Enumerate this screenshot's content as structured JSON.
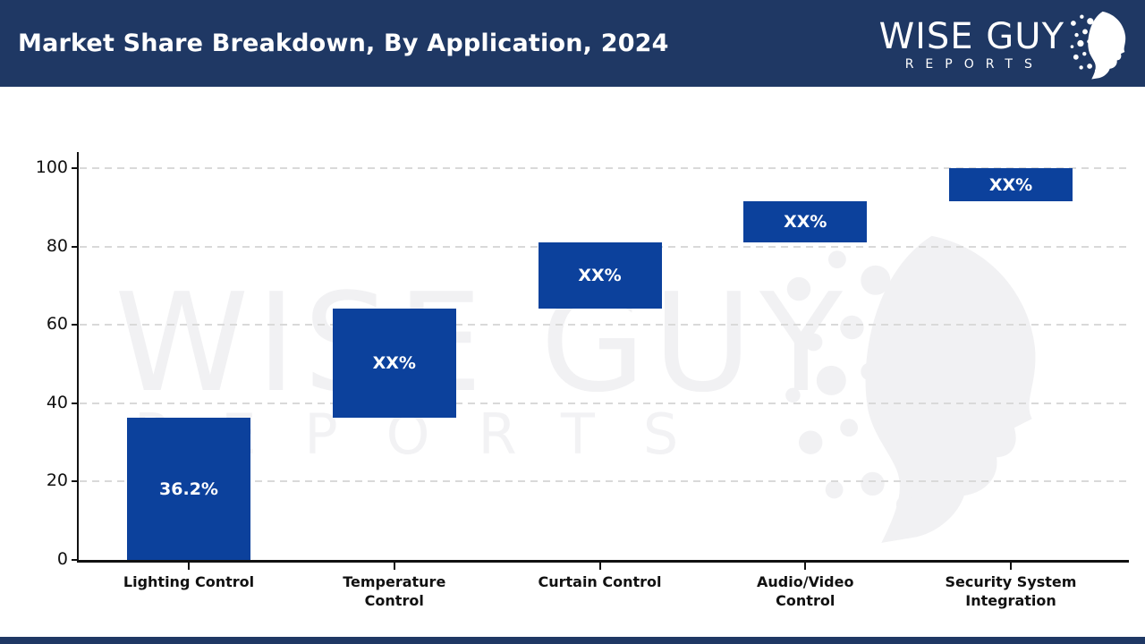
{
  "header": {
    "title": "Market Share Breakdown, By Application, 2024",
    "logo": {
      "line1": "WISE GUY",
      "line2": "REPORTS"
    }
  },
  "watermark": {
    "line1": "WISE GUY",
    "line2": "REPORTS"
  },
  "chart_data": {
    "type": "bar",
    "subtype": "waterfall",
    "title": "Market Share Breakdown, By Application, 2024",
    "categories": [
      "Lighting Control",
      "Temperature Control",
      "Curtain Control",
      "Audio/Video Control",
      "Security System Integration"
    ],
    "bars": [
      {
        "category": "Lighting Control",
        "label_lines": [
          "Lighting Control"
        ],
        "start": 0,
        "end": 36.2,
        "label": "36.2%"
      },
      {
        "category": "Temperature Control",
        "label_lines": [
          "Temperature",
          "Control"
        ],
        "start": 36.2,
        "end": 64.2,
        "label": "XX%"
      },
      {
        "category": "Curtain Control",
        "label_lines": [
          "Curtain Control"
        ],
        "start": 64.2,
        "end": 81.0,
        "label": "XX%"
      },
      {
        "category": "Audio/Video Control",
        "label_lines": [
          "Audio/Video",
          "Control"
        ],
        "start": 81.0,
        "end": 91.5,
        "label": "XX%"
      },
      {
        "category": "Security System Integration",
        "label_lines": [
          "Security System",
          "Integration"
        ],
        "start": 91.5,
        "end": 100,
        "label": "XX%"
      }
    ],
    "yticks": [
      0,
      20,
      40,
      60,
      80,
      100
    ],
    "ylim": [
      0,
      100
    ],
    "xlabel": "",
    "ylabel": "",
    "grid": "horizontal-dashed",
    "legend": "none"
  },
  "colors": {
    "header_bg": "#1f3864",
    "footer_bg": "#1f3864",
    "bar": "#0c419c",
    "bar_label": "#ffffff",
    "grid": "#d9d9d9",
    "axis": "#111111",
    "watermark": "#f1f1f3"
  }
}
